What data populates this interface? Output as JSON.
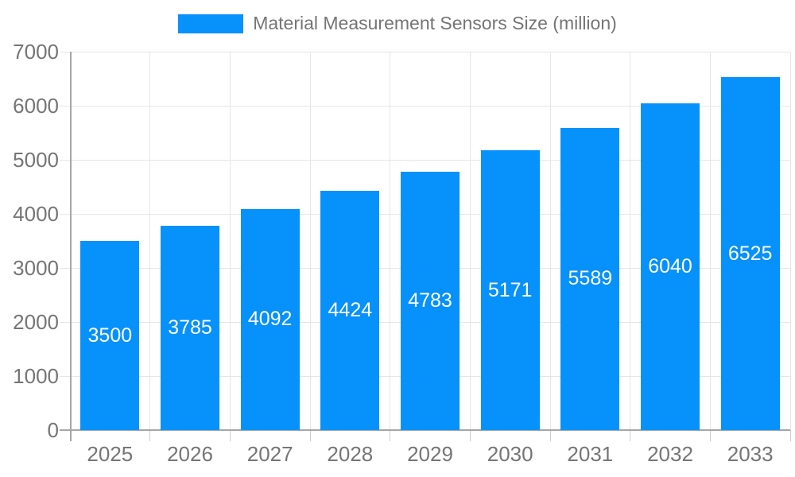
{
  "chart_data": {
    "type": "bar",
    "title": "Material Measurement Sensors Size (million)",
    "legend": {
      "position": "top",
      "entries": [
        "Material Measurement Sensors Size (million)"
      ]
    },
    "categories": [
      "2025",
      "2026",
      "2027",
      "2028",
      "2029",
      "2030",
      "2031",
      "2032",
      "2033"
    ],
    "series": [
      {
        "name": "Material Measurement Sensors Size (million)",
        "values": [
          3500,
          3785,
          4092,
          4424,
          4783,
          5171,
          5589,
          6040,
          6525
        ]
      }
    ],
    "bar_labels_visible": true,
    "xlabel": "",
    "ylabel": "",
    "ylim": [
      0,
      7000
    ],
    "yticks": [
      0,
      1000,
      2000,
      3000,
      4000,
      5000,
      6000,
      7000
    ],
    "grid": true,
    "colors": {
      "bar": "#0691fb",
      "bar_label": "#ffffff",
      "grid": "#e6e6e6",
      "axis": "#a6a6a6",
      "tick_label": "#757575",
      "background": "#ffffff"
    }
  }
}
